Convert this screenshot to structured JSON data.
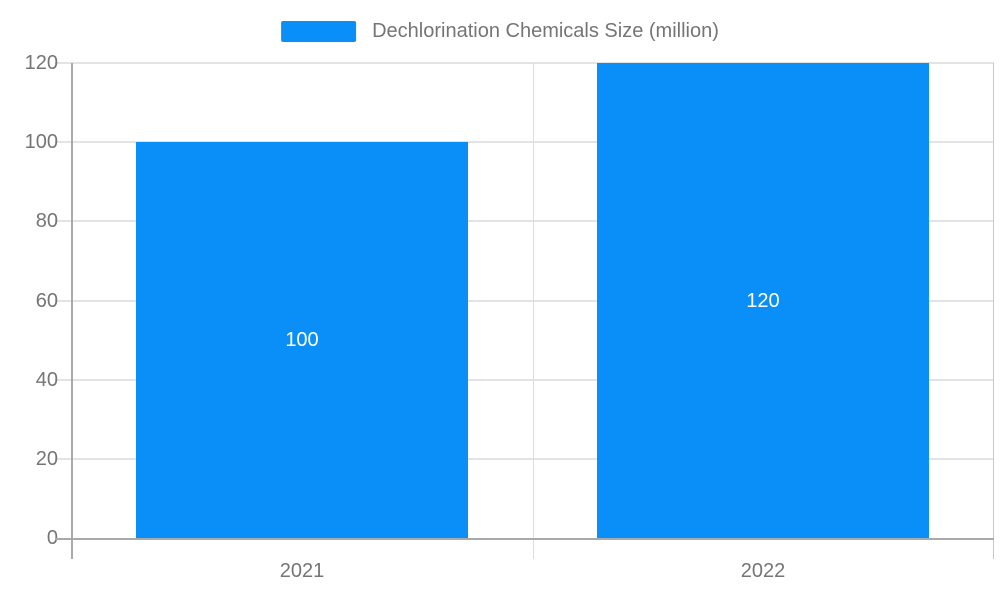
{
  "chart_data": {
    "type": "bar",
    "title": "",
    "legend": {
      "label": "Dechlorination Chemicals Size (million)",
      "position": "top"
    },
    "categories": [
      "2021",
      "2022"
    ],
    "series": [
      {
        "name": "Dechlorination Chemicals Size (million)",
        "values": [
          100,
          120
        ]
      }
    ],
    "value_labels": [
      "100",
      "120"
    ],
    "xlabel": "",
    "ylabel": "",
    "ylim": [
      0,
      120
    ],
    "yticks": [
      0,
      20,
      40,
      60,
      80,
      100,
      120
    ],
    "grid": true,
    "layout": {
      "legend_position": "top",
      "value_labels_inside_bars": true,
      "bar_width_fraction": 0.72
    },
    "colors": {
      "bar": "#0a8ff8",
      "value_label_text": "#ffffff",
      "axis_line": "#a9a9a9",
      "grid_line": "#e3e3e3",
      "tick_line": "#c9c9c9",
      "label_text": "#757575",
      "background": "#ffffff"
    }
  }
}
